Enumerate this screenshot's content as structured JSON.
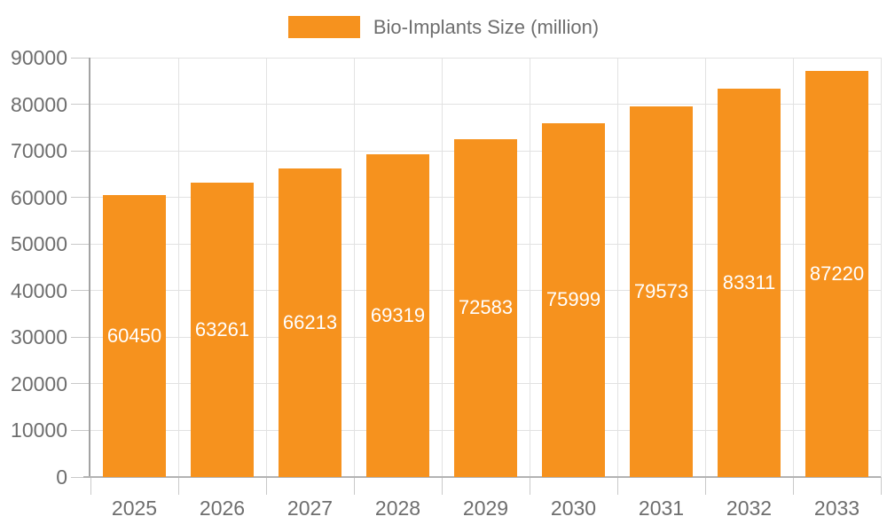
{
  "chart_data": {
    "type": "bar",
    "title": "",
    "legend": "Bio-Implants Size (million)",
    "legend_position": "top",
    "categories": [
      "2025",
      "2026",
      "2027",
      "2028",
      "2029",
      "2030",
      "2031",
      "2032",
      "2033"
    ],
    "series": [
      {
        "name": "Bio-Implants Size (million)",
        "values": [
          60450,
          63261,
          66213,
          69319,
          72583,
          75999,
          79573,
          83311,
          87220
        ]
      }
    ],
    "xlabel": "",
    "ylabel": "",
    "ylim": [
      0,
      90000
    ],
    "y_ticks": [
      0,
      10000,
      20000,
      30000,
      40000,
      50000,
      60000,
      70000,
      80000,
      90000
    ],
    "grid": true,
    "bar_color": "#F6921E",
    "bar_label_color": "#FFFFFF",
    "axis_text_color": "#6E6E6E",
    "gridline_color": "#E2E2E2",
    "axis_line_color": "#A3A3A3"
  }
}
